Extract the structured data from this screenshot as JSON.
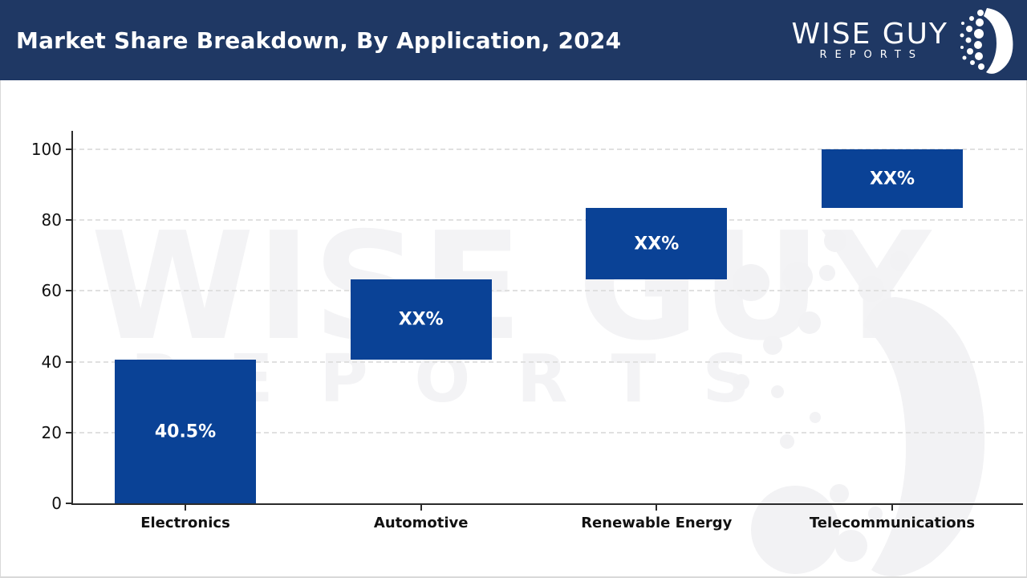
{
  "header": {
    "title": "Market Share Breakdown, By Application, 2024",
    "logo": {
      "line1": "WISE GUY",
      "line2": "REPORTS"
    }
  },
  "watermark": {
    "line1": "WISE GUY",
    "line2": "REPORTS"
  },
  "icons": {
    "logo_face": "dot-face-profile",
    "watermark_face": "dot-face-profile"
  },
  "colors": {
    "header_bg": "#1f3864",
    "bar": "#0a4296",
    "grid": "#e0e0e0",
    "axis": "#2b2b2b",
    "watermark": "#f3f3f5",
    "bar_label": "#ffffff"
  },
  "chart_data": {
    "type": "bar",
    "subtype": "waterfall",
    "title": "Market Share Breakdown, By Application, 2024",
    "categories": [
      "Electronics",
      "Automotive",
      "Renewable Energy",
      "Telecommunications"
    ],
    "series": [
      {
        "name": "Market Share",
        "segments": [
          {
            "category": "Electronics",
            "start": 0,
            "end": 40.5,
            "label": "40.5%"
          },
          {
            "category": "Automotive",
            "start": 40.5,
            "end": 63.3,
            "label": "XX%"
          },
          {
            "category": "Renewable Energy",
            "start": 63.3,
            "end": 83.4,
            "label": "XX%"
          },
          {
            "category": "Telecommunications",
            "start": 83.4,
            "end": 100,
            "label": "XX%"
          }
        ]
      }
    ],
    "xlabel": "",
    "ylabel": "",
    "ylim": [
      0,
      100
    ],
    "yticks": [
      0,
      20,
      40,
      60,
      80,
      100
    ],
    "grid": "horizontal-dashed",
    "legend": "none"
  }
}
